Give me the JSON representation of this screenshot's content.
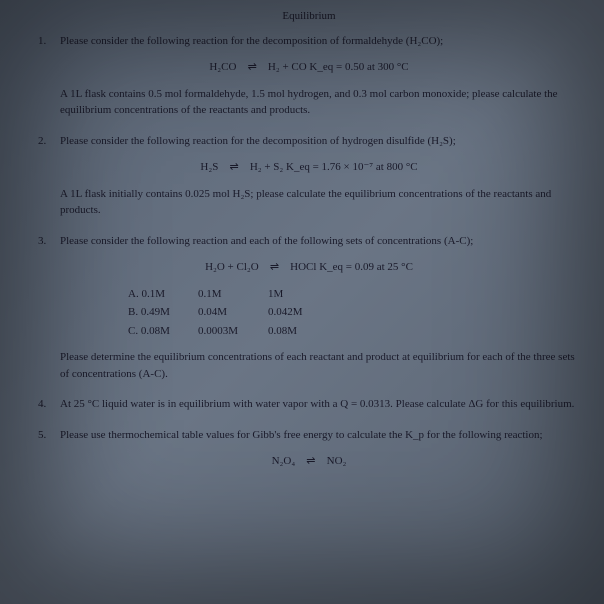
{
  "header": "Equilibrium",
  "p1": {
    "num": "1.",
    "intro": "Please consider the following reaction for the decomposition of formaldehyde (H₂CO);",
    "eq_left": "H₂CO",
    "eq_right": "H₂   +   CO    K_eq = 0.50 at 300 °C",
    "body": "A 1L flask contains 0.5 mol formaldehyde, 1.5 mol hydrogen, and 0.3 mol carbon monoxide; please calculate the equilibrium concentrations of the reactants and products."
  },
  "p2": {
    "num": "2.",
    "intro": "Please consider the following reaction for the decomposition of hydrogen disulfide (H₂S);",
    "eq_left": "H₂S",
    "eq_right": "H₂   +   S₂    K_eq = 1.76 × 10⁻⁷ at 800 °C",
    "body": "A 1L flask initially contains 0.025 mol H₂S; please calculate the equilibrium concentrations of the reactants and products."
  },
  "p3": {
    "num": "3.",
    "intro": "Please consider the following reaction and each of the following sets of concentrations (A-C);",
    "eq_left": "H₂O   +   Cl₂O",
    "eq_right": "HOCl    K_eq = 0.09 at 25 °C",
    "rows": [
      {
        "label": "A.",
        "c1": "0.1M",
        "c2": "0.1M",
        "c3": "1M"
      },
      {
        "label": "B.",
        "c1": "0.49M",
        "c2": "0.04M",
        "c3": "0.042M"
      },
      {
        "label": "C.",
        "c1": "0.08M",
        "c2": "0.0003M",
        "c3": "0.08M"
      }
    ],
    "body": "Please determine the equilibrium concentrations of each reactant and product at equilibrium for each of the three sets of concentrations (A-C)."
  },
  "p4": {
    "num": "4.",
    "body": "At 25 °C liquid water is in equilibrium with water vapor with a Q = 0.0313.  Please calculate ΔG for this equilibrium."
  },
  "p5": {
    "num": "5.",
    "body": "Please use thermochemical table values for Gibb's free energy to calculate the K_p for the following reaction;",
    "eq_left": "N₂O₄",
    "eq_right": "NO₂"
  }
}
